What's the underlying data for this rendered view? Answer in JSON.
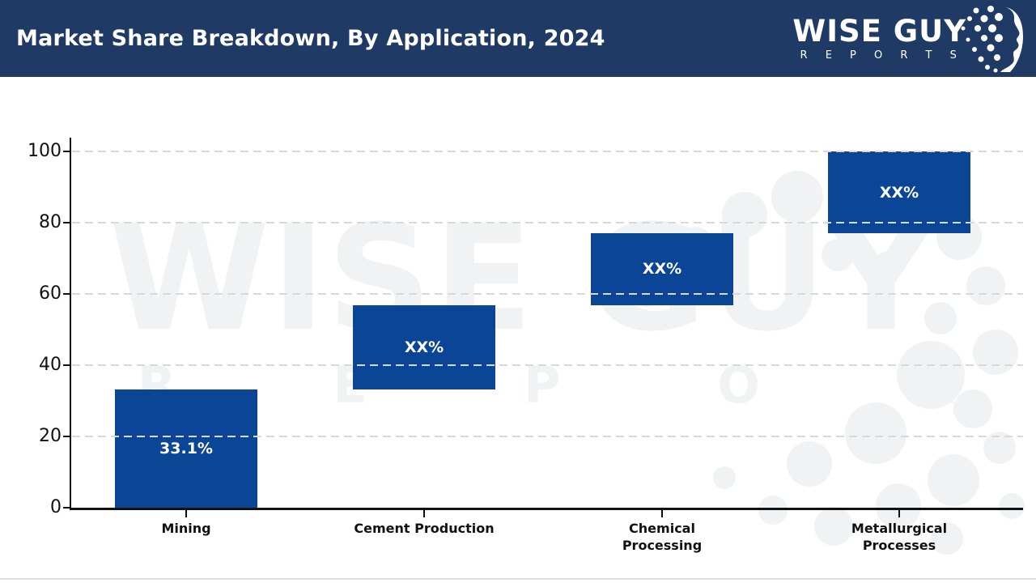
{
  "header": {
    "title": "Market Share Breakdown, By Application, 2024",
    "logo": {
      "line1": "WISE GUY",
      "line2": "R E P O R T S"
    }
  },
  "watermark": {
    "line1": "WISE GUY",
    "line2": "R E P O R T S"
  },
  "icons": {
    "logo_head": "dotted-face-profile",
    "watermark_head": "dotted-face-profile"
  },
  "colors": {
    "header_bg": "#203a66",
    "bar_fill": "#0b4596",
    "bar_label_text": "#ffffff",
    "title_text": "#ffffff",
    "gridline": "#d9d9d9",
    "axis": "#111111",
    "watermark": "#f1f2f4"
  },
  "chart_data": {
    "type": "bar",
    "subtype": "waterfall",
    "title": "Market Share Breakdown, By Application, 2024",
    "xlabel": "",
    "ylabel": "",
    "categories": [
      "Mining",
      "Cement Production",
      "Chemical Processing",
      "Metallurgical Processes"
    ],
    "tick_labels": [
      "Mining",
      "Cement Production",
      "Chemical\nProcessing",
      "Metallurgical\nProcesses"
    ],
    "segments": [
      {
        "category": "Mining",
        "start": 0,
        "end": 33.1,
        "label": "33.1%"
      },
      {
        "category": "Cement Production",
        "start": 33.1,
        "end": 56.9,
        "label": "XX%"
      },
      {
        "category": "Chemical Processing",
        "start": 56.9,
        "end": 77.0,
        "label": "XX%"
      },
      {
        "category": "Metallurgical Processes",
        "start": 77.0,
        "end": 100,
        "label": "XX%"
      }
    ],
    "yticks": [
      0,
      20,
      40,
      60,
      80,
      100
    ],
    "ylim": [
      0,
      100
    ],
    "grid": "dashed-horizontal",
    "legend": "none"
  }
}
